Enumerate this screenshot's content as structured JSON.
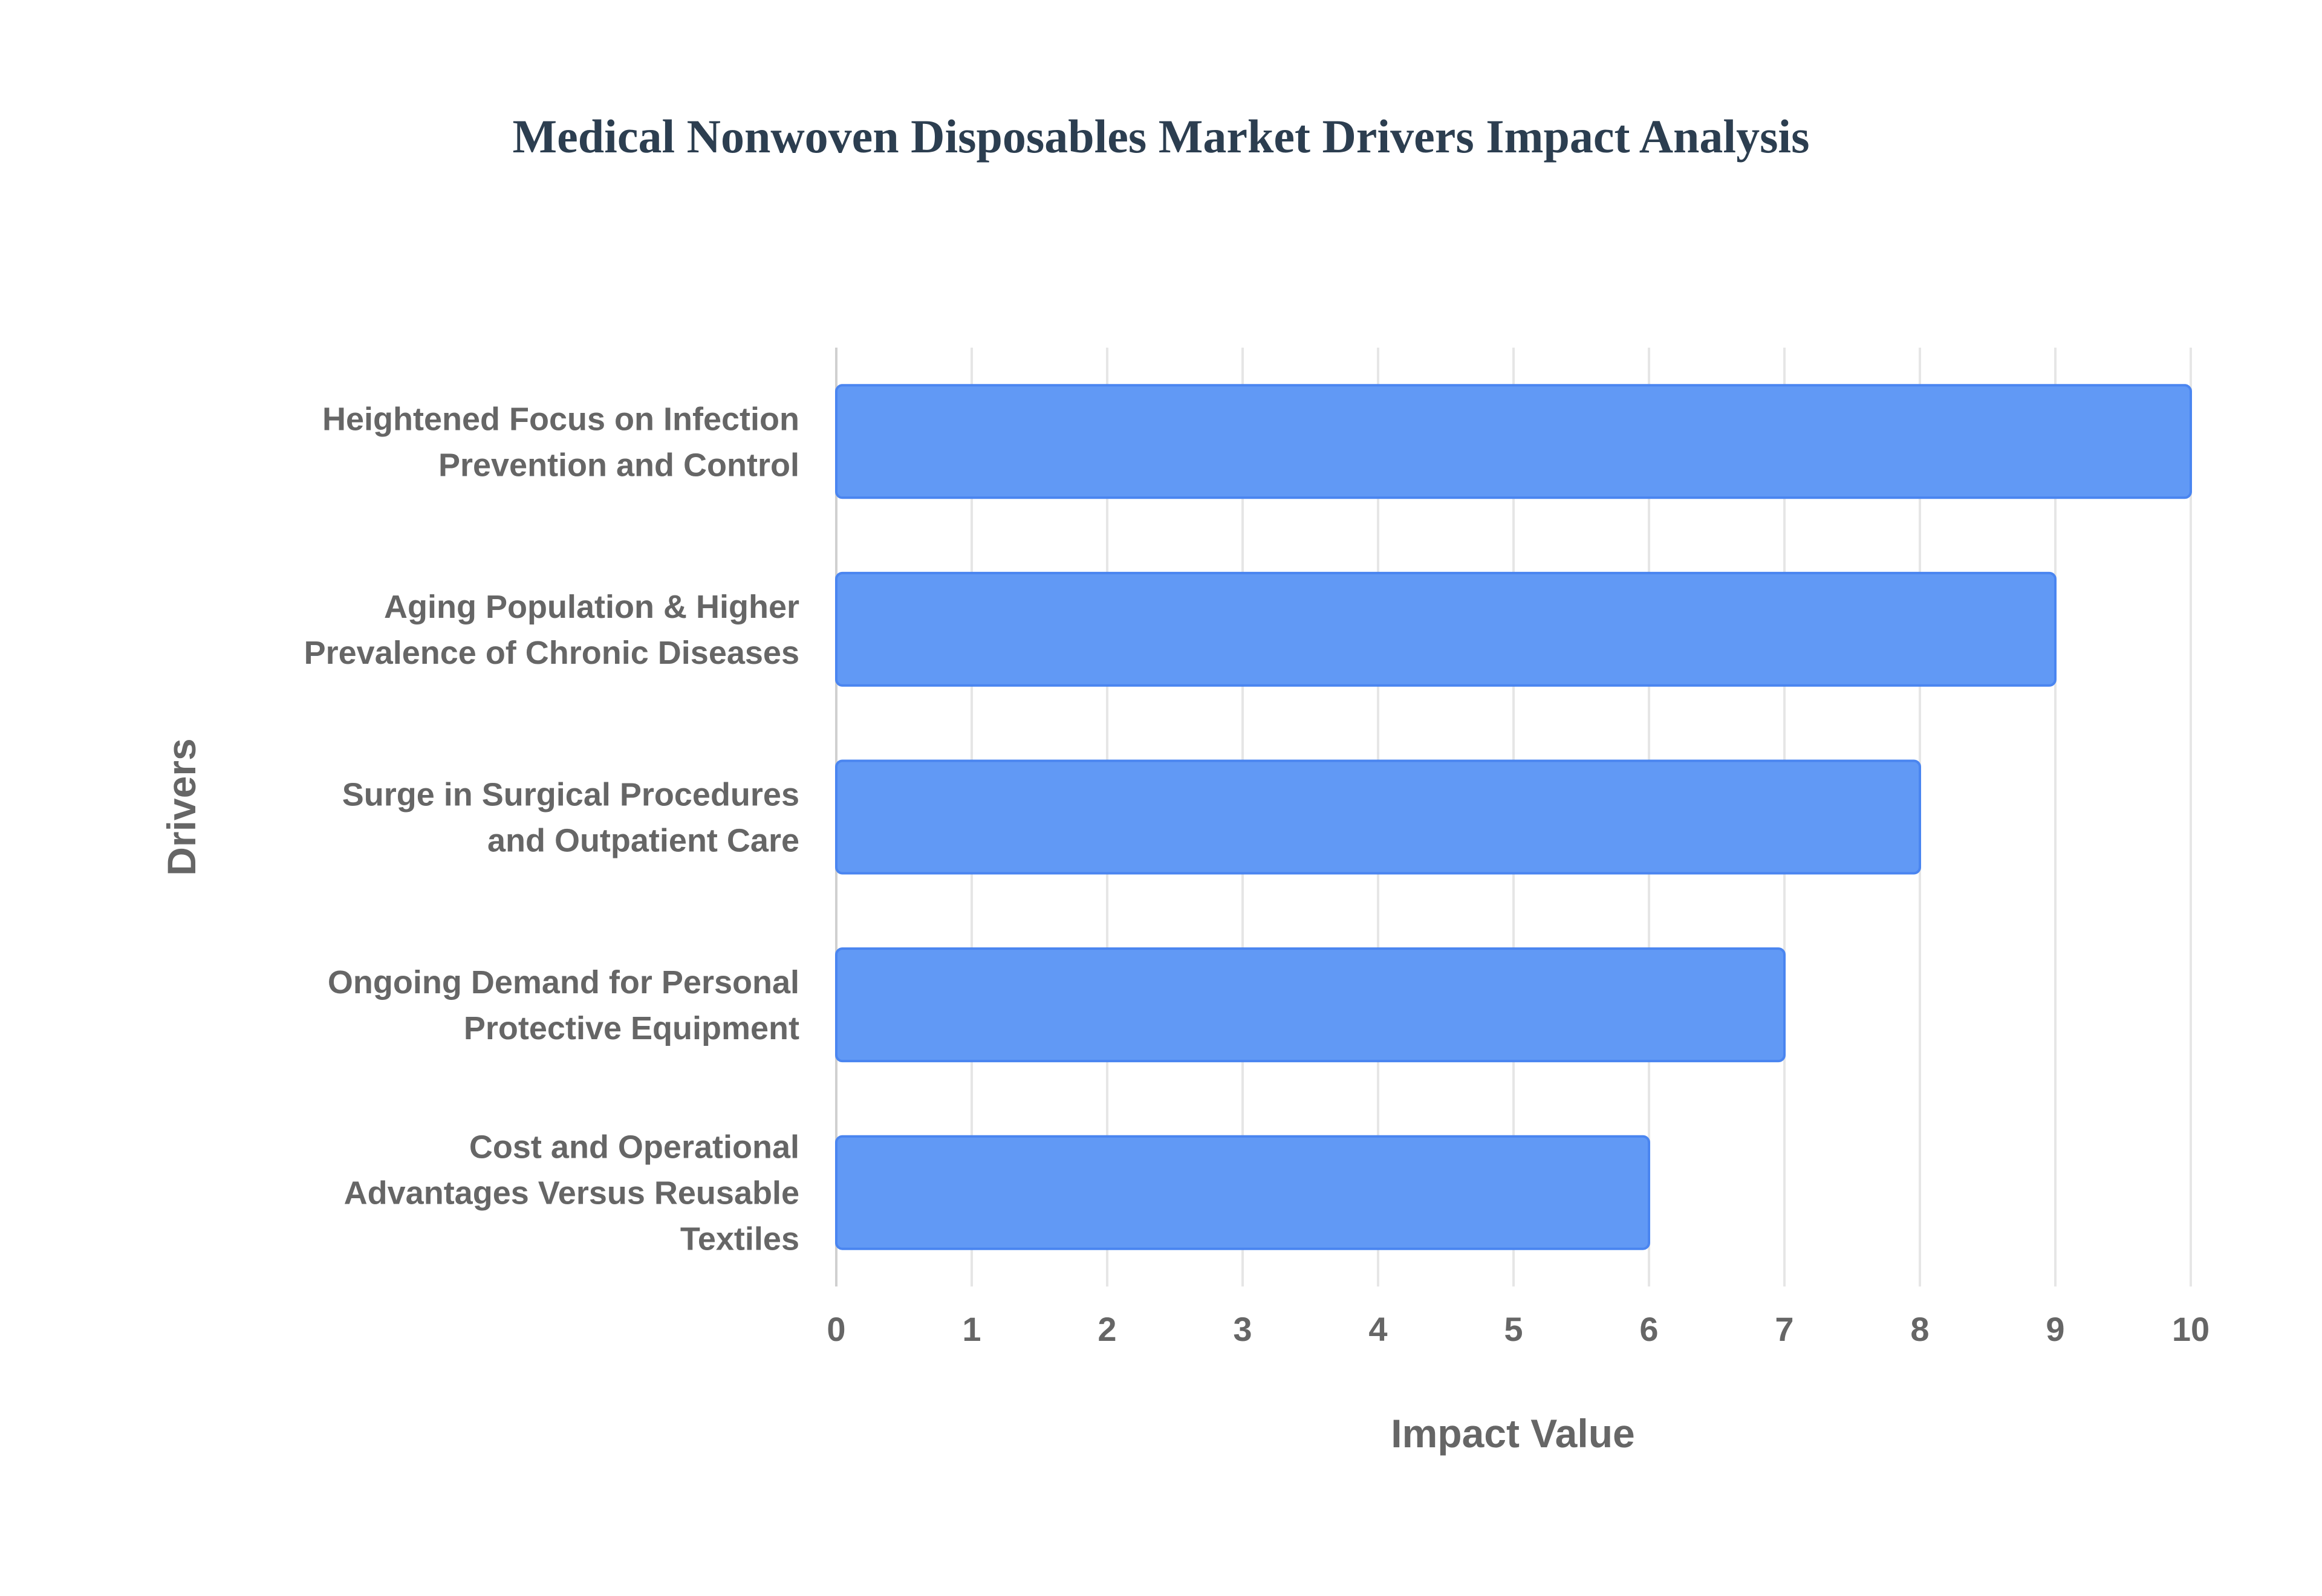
{
  "chart_data": {
    "type": "bar",
    "orientation": "horizontal",
    "title": "Medical Nonwoven Disposables Market Drivers Impact Analysis",
    "xlabel": "Impact Value",
    "ylabel": "Drivers",
    "xlim": [
      0,
      10
    ],
    "xticks": [
      "0",
      "1",
      "2",
      "3",
      "4",
      "5",
      "6",
      "7",
      "8",
      "9",
      "10"
    ],
    "grid": true,
    "categories": [
      [
        "Heightened Focus on Infection",
        "Prevention and Control"
      ],
      [
        "Aging Population & Higher",
        "Prevalence of Chronic Diseases"
      ],
      [
        "Surge in Surgical Procedures",
        "and Outpatient Care"
      ],
      [
        "Ongoing Demand for Personal",
        "Protective Equipment"
      ],
      [
        "Cost and Operational",
        "Advantages Versus Reusable",
        "Textiles"
      ]
    ],
    "values": [
      10,
      9,
      8,
      7,
      6
    ],
    "colors": {
      "bar_fill": "#6199f5",
      "bar_border": "#4a85f0",
      "grid": "#e6e6e6",
      "text": "#666666",
      "title": "#2c3e50"
    }
  }
}
